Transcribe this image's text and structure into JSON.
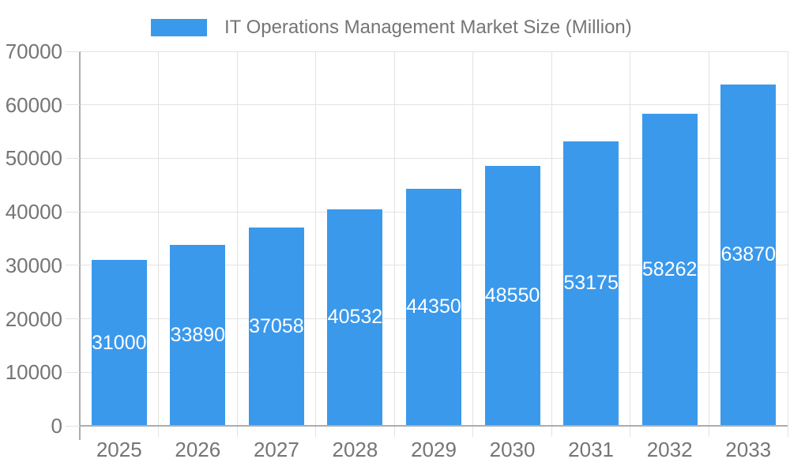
{
  "chart_data": {
    "type": "bar",
    "title": "IT Operations Management Market Size (Million)",
    "legend": {
      "entries": [
        "IT Operations Management Market Size (Million)"
      ],
      "position": "top-center"
    },
    "categories": [
      "2025",
      "2026",
      "2027",
      "2028",
      "2029",
      "2030",
      "2031",
      "2032",
      "2033"
    ],
    "values": [
      31000,
      33890,
      37058,
      40532,
      44350,
      48550,
      53175,
      58262,
      63870
    ],
    "value_labels": [
      "31000",
      "33890",
      "37058",
      "40532",
      "44350",
      "48550",
      "53175",
      "58262",
      "63870"
    ],
    "xlabel": "",
    "ylabel": "",
    "ylim": [
      0,
      70000
    ],
    "yticks": [
      0,
      10000,
      20000,
      30000,
      40000,
      50000,
      60000,
      70000
    ],
    "ytick_labels": [
      "0",
      "10000",
      "20000",
      "30000",
      "40000",
      "50000",
      "60000",
      "70000"
    ],
    "grid": true,
    "colors": {
      "bar": "#3B99EC",
      "value_label": "#FFFFFF",
      "axis_text": "#757575",
      "grid": "#E2E2E2",
      "axis_line": "#ADADAD",
      "background": "#FFFFFF"
    }
  }
}
